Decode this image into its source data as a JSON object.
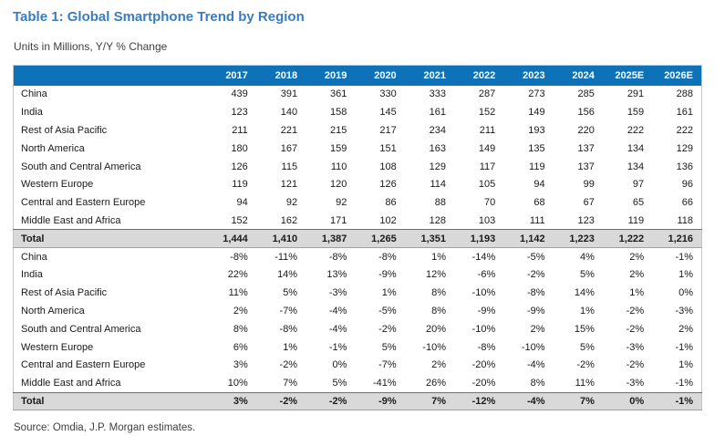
{
  "title": "Table 1: Global Smartphone Trend by Region",
  "subtitle": "Units in Millions, Y/Y % Change",
  "source": "Source: Omdia, J.P. Morgan estimates.",
  "colors": {
    "title_text": "#3a7cbe",
    "header_bg": "#0e72b8",
    "header_text": "#ffffff",
    "total_row_bg": "#d9d9d9",
    "body_text": "#1a1a1a"
  },
  "chart_data": {
    "type": "table",
    "title": "Table 1: Global Smartphone Trend by Region",
    "units_note": "Units in Millions, Y/Y % Change",
    "columns": [
      "2017",
      "2018",
      "2019",
      "2020",
      "2021",
      "2022",
      "2023",
      "2024",
      "2025E",
      "2026E"
    ],
    "sections": [
      {
        "name": "units_millions",
        "rows": [
          {
            "label": "China",
            "is_total": false,
            "values": [
              "439",
              "391",
              "361",
              "330",
              "333",
              "287",
              "273",
              "285",
              "291",
              "288"
            ]
          },
          {
            "label": "India",
            "is_total": false,
            "values": [
              "123",
              "140",
              "158",
              "145",
              "161",
              "152",
              "149",
              "156",
              "159",
              "161"
            ]
          },
          {
            "label": "Rest of Asia Pacific",
            "is_total": false,
            "values": [
              "211",
              "221",
              "215",
              "217",
              "234",
              "211",
              "193",
              "220",
              "222",
              "222"
            ]
          },
          {
            "label": "North America",
            "is_total": false,
            "values": [
              "180",
              "167",
              "159",
              "151",
              "163",
              "149",
              "135",
              "137",
              "134",
              "129"
            ]
          },
          {
            "label": "South and Central America",
            "is_total": false,
            "values": [
              "126",
              "115",
              "110",
              "108",
              "129",
              "117",
              "119",
              "137",
              "134",
              "136"
            ]
          },
          {
            "label": "Western Europe",
            "is_total": false,
            "values": [
              "119",
              "121",
              "120",
              "126",
              "114",
              "105",
              "94",
              "99",
              "97",
              "96"
            ]
          },
          {
            "label": "Central and Eastern Europe",
            "is_total": false,
            "values": [
              "94",
              "92",
              "92",
              "86",
              "88",
              "70",
              "68",
              "67",
              "65",
              "66"
            ]
          },
          {
            "label": "Middle East and Africa",
            "is_total": false,
            "values": [
              "152",
              "162",
              "171",
              "102",
              "128",
              "103",
              "111",
              "123",
              "119",
              "118"
            ]
          },
          {
            "label": "Total",
            "is_total": true,
            "values": [
              "1,444",
              "1,410",
              "1,387",
              "1,265",
              "1,351",
              "1,193",
              "1,142",
              "1,223",
              "1,222",
              "1,216"
            ]
          }
        ]
      },
      {
        "name": "yoy_pct_change",
        "rows": [
          {
            "label": "China",
            "is_total": false,
            "values": [
              "-8%",
              "-11%",
              "-8%",
              "-8%",
              "1%",
              "-14%",
              "-5%",
              "4%",
              "2%",
              "-1%"
            ]
          },
          {
            "label": "India",
            "is_total": false,
            "values": [
              "22%",
              "14%",
              "13%",
              "-9%",
              "12%",
              "-6%",
              "-2%",
              "5%",
              "2%",
              "1%"
            ]
          },
          {
            "label": "Rest of Asia Pacific",
            "is_total": false,
            "values": [
              "11%",
              "5%",
              "-3%",
              "1%",
              "8%",
              "-10%",
              "-8%",
              "14%",
              "1%",
              "0%"
            ]
          },
          {
            "label": "North America",
            "is_total": false,
            "values": [
              "2%",
              "-7%",
              "-4%",
              "-5%",
              "8%",
              "-9%",
              "-9%",
              "1%",
              "-2%",
              "-3%"
            ]
          },
          {
            "label": "South and Central America",
            "is_total": false,
            "values": [
              "8%",
              "-8%",
              "-4%",
              "-2%",
              "20%",
              "-10%",
              "2%",
              "15%",
              "-2%",
              "2%"
            ]
          },
          {
            "label": "Western Europe",
            "is_total": false,
            "values": [
              "6%",
              "1%",
              "-1%",
              "5%",
              "-10%",
              "-8%",
              "-10%",
              "5%",
              "-3%",
              "-1%"
            ]
          },
          {
            "label": "Central and Eastern Europe",
            "is_total": false,
            "values": [
              "3%",
              "-2%",
              "0%",
              "-7%",
              "2%",
              "-20%",
              "-4%",
              "-2%",
              "-2%",
              "1%"
            ]
          },
          {
            "label": "Middle East and Africa",
            "is_total": false,
            "values": [
              "10%",
              "7%",
              "5%",
              "-41%",
              "26%",
              "-20%",
              "8%",
              "11%",
              "-3%",
              "-1%"
            ]
          },
          {
            "label": "Total",
            "is_total": true,
            "values": [
              "3%",
              "-2%",
              "-2%",
              "-9%",
              "7%",
              "-12%",
              "-4%",
              "7%",
              "0%",
              "-1%"
            ]
          }
        ]
      }
    ]
  }
}
